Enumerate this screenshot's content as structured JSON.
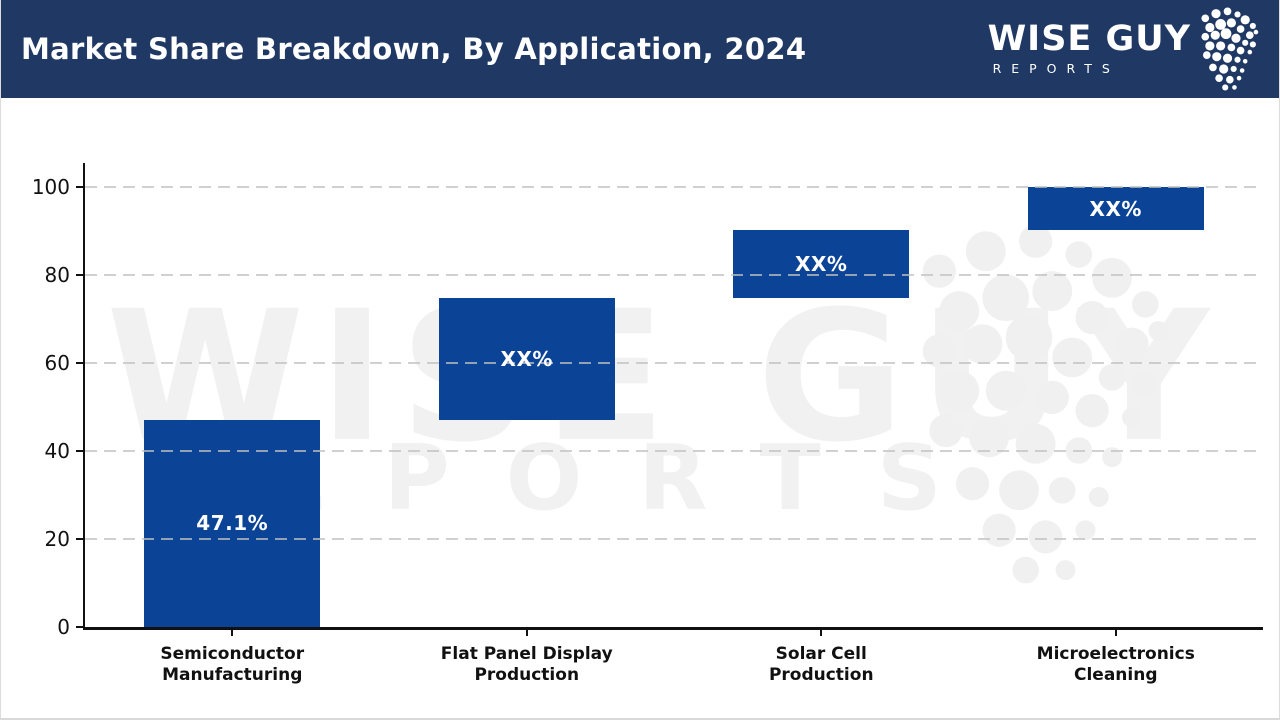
{
  "header": {
    "title": "Market Share Breakdown, By Application, 2024",
    "logo": {
      "brand": "WISE GUY",
      "brand_sub": "REPORTS"
    }
  },
  "watermark": {
    "brand": "WISE GUY",
    "brand_sub": "REPORTS"
  },
  "chart_data": {
    "type": "bar",
    "subtype": "stacked-waterfall-segments",
    "title": "Market Share Breakdown, By Application, 2024",
    "categories": [
      "Semiconductor\nManufacturing",
      "Flat Panel Display\nProduction",
      "Solar Cell\nProduction",
      "Microelectronics\nCleaning"
    ],
    "series": [
      {
        "name": "Semiconductor Manufacturing",
        "start": 0,
        "end": 47.1,
        "label": "47.1%"
      },
      {
        "name": "Flat Panel Display Production",
        "start": 47.1,
        "end": 74.8,
        "label": "XX%"
      },
      {
        "name": "Solar Cell Production",
        "start": 74.8,
        "end": 90.2,
        "label": "XX%"
      },
      {
        "name": "Microelectronics Cleaning",
        "start": 90.2,
        "end": 100,
        "label": "XX%"
      }
    ],
    "ylim": [
      0,
      100
    ],
    "yticks": [
      0,
      20,
      40,
      60,
      80,
      100
    ],
    "xlabel": "",
    "ylabel": "",
    "grid": "horizontal-dashed",
    "legend": "none",
    "bar_color": "#0b4397",
    "bar_label_color": "#ffffff",
    "axis_color": "#111111",
    "grid_color": "#c9c9c9",
    "header_bg": "#1f3864",
    "watermark_color": "#f1f1f1"
  }
}
